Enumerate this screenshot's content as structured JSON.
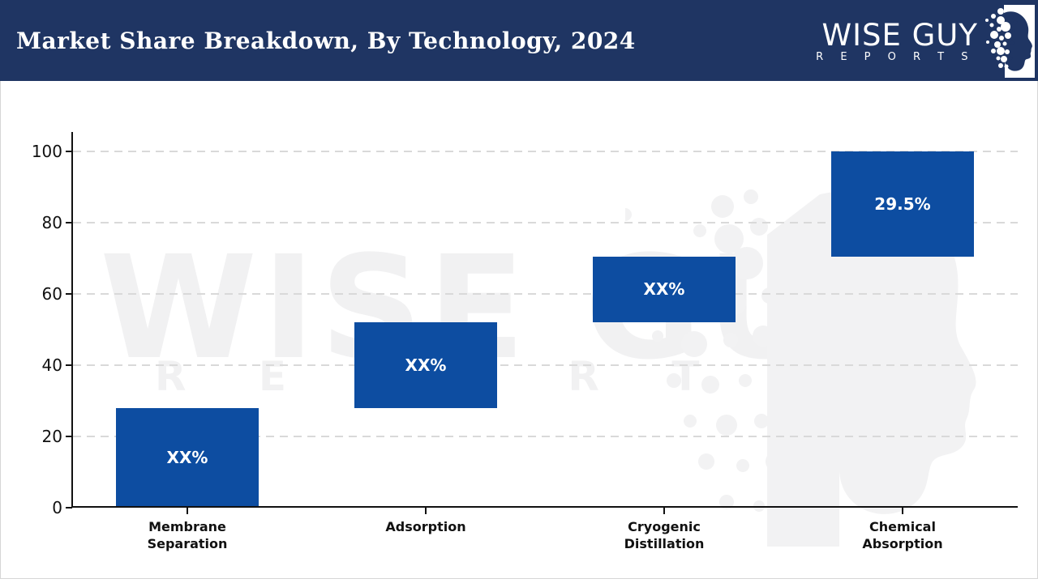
{
  "header": {
    "title": "Market Share Breakdown, By Technology, 2024",
    "logo": {
      "wordmark": "WISE GUY",
      "subtext": "R E P O R T S"
    }
  },
  "watermark": {
    "wordmark": "WISE GUY",
    "subtext": "R E P O R T S"
  },
  "chart_data": {
    "type": "bar",
    "subtype": "floating-waterfall",
    "title": "Market Share Breakdown, By Technology, 2024",
    "categories": [
      "Membrane Separation",
      "Adsorption",
      "Cryogenic Distillation",
      "Chemical Absorption"
    ],
    "category_lines": [
      [
        "Membrane",
        "Separation"
      ],
      [
        "Adsorption"
      ],
      [
        "Cryogenic",
        "Distillation"
      ],
      [
        "Chemical",
        "Absorption"
      ]
    ],
    "segments": [
      {
        "category": "Membrane Separation",
        "start": 0,
        "end": 28,
        "label": "XX%"
      },
      {
        "category": "Adsorption",
        "start": 28,
        "end": 52,
        "label": "XX%"
      },
      {
        "category": "Cryogenic Distillation",
        "start": 52,
        "end": 70.5,
        "label": "XX%"
      },
      {
        "category": "Chemical Absorption",
        "start": 70.5,
        "end": 100,
        "label": "29.5%"
      }
    ],
    "xlabel": "",
    "ylabel": "",
    "yticks": [
      0,
      20,
      40,
      60,
      80,
      100
    ],
    "ylim": [
      0,
      105
    ],
    "grid": true,
    "gridline_style": "dashed",
    "legend": "none",
    "colors": {
      "bar": "#0d4da1",
      "bar_label": "#ffffff",
      "grid": "#d9d9d9",
      "axis": "#111111",
      "header_bg": "#1f3563",
      "watermark": "#f1f1f2"
    }
  }
}
